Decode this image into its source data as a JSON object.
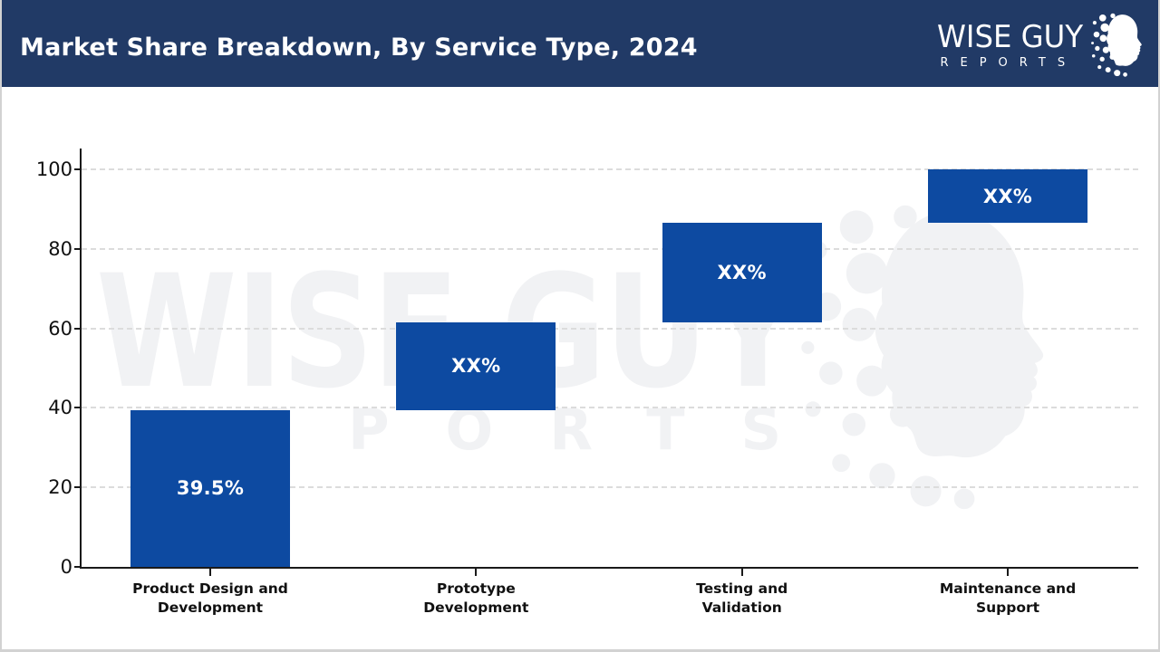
{
  "header": {
    "title": "Market Share Breakdown, By Service Type, 2024",
    "logo": {
      "name": "WISE GUY",
      "sub": "REPORTS"
    }
  },
  "watermark": {
    "line1": "WISE GUY",
    "line2": "REPORTS"
  },
  "chart_data": {
    "type": "bar",
    "subtype": "waterfall",
    "title": "Market Share Breakdown, By Service Type, 2024",
    "categories": [
      [
        "Product Design and",
        "Development"
      ],
      [
        "Prototype",
        "Development"
      ],
      [
        "Testing and",
        "Validation"
      ],
      [
        "Maintenance and",
        "Support"
      ]
    ],
    "values": {
      "starts": [
        0,
        39.5,
        61.5,
        86.5
      ],
      "ends": [
        39.5,
        61.5,
        86.5,
        100
      ]
    },
    "bar_labels": [
      "39.5%",
      "XX%",
      "XX%",
      "XX%"
    ],
    "yticks": [
      0,
      20,
      40,
      60,
      80,
      100
    ],
    "ylim": [
      0,
      100
    ],
    "xlabel": "",
    "ylabel": "",
    "legend": "none",
    "grid": "horizontal-dashed"
  },
  "colors": {
    "header_bg": "#213a66",
    "bar": "#0d4aa1",
    "grid": "#dcdcdc",
    "axis": "#1a1a1a",
    "bar_label": "#ffffff",
    "watermark": "#f1f2f4"
  }
}
